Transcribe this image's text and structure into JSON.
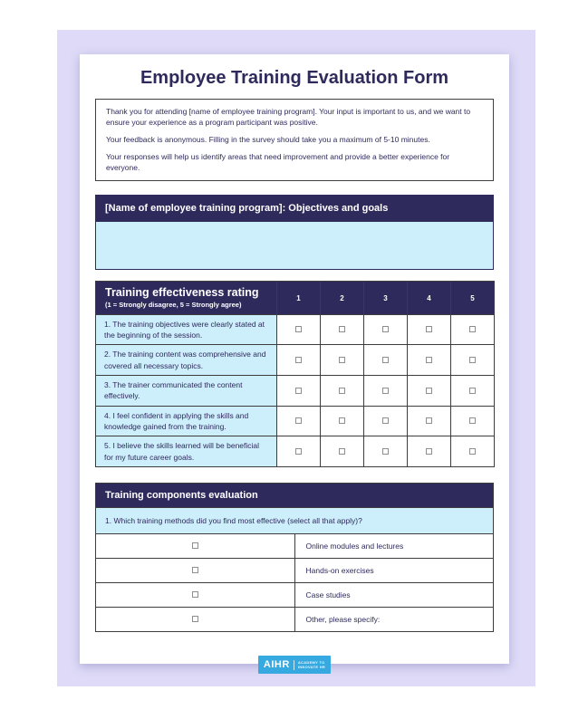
{
  "document": {
    "title": "Employee Training Evaluation Form",
    "intro": {
      "paragraphs": [
        "Thank you for attending [name of employee training program]. Your input is important to us, and we want to ensure your experience as a program participant was positive.",
        "Your feedback is anonymous. Filling in the survey should take you a maximum of 5-10 minutes.",
        "Your responses will help us identify areas that need improvement and provide a better experience for everyone."
      ]
    },
    "objectives_section": {
      "header": "[Name of employee training program]: Objectives and goals"
    },
    "effectiveness_table": {
      "title": "Training effectiveness rating",
      "subtitle": "(1 = Strongly disagree, 5 = Strongly agree)",
      "scale": [
        "1",
        "2",
        "3",
        "4",
        "5"
      ],
      "statements": [
        "1. The training objectives were clearly stated at the beginning of the session.",
        "2. The training content was comprehensive and covered all necessary topics.",
        "3. The trainer communicated the content effectively.",
        "4. I feel confident in applying the skills and knowledge gained from the training.",
        "5. I believe the skills learned will be beneficial for my future career goals."
      ]
    },
    "components_section": {
      "header": "Training components evaluation",
      "question": "1. Which training methods did you find most effective (select all that apply)?",
      "options": [
        "Online modules and lectures",
        "Hands-on exercises",
        "Case studies",
        "Other, please specify:"
      ]
    },
    "footer_logo": {
      "brand": "AIHR",
      "tagline_line1": "ACADEMY TO",
      "tagline_line2": "INNOVATE HR"
    }
  },
  "colors": {
    "navy": "#2e2a5c",
    "light_blue": "#cdeefb",
    "lavender": "#dedaf7",
    "logo_blue": "#36a9e1",
    "border_dark": "#3d3d3d"
  }
}
